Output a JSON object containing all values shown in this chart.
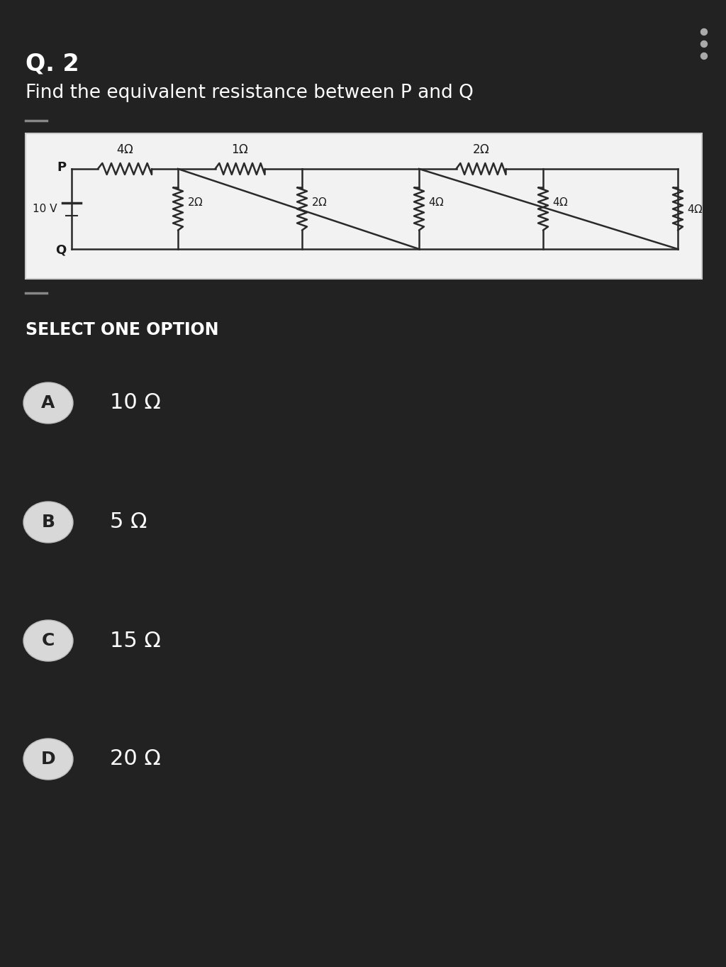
{
  "bg_dark": "#222222",
  "circuit_bg": "#f2f2f2",
  "circuit_border": "#cccccc",
  "text_color": "#ffffff",
  "wire_color": "#2a2a2a",
  "title": "Q. 2",
  "question": "Find the equivalent resistance between P and Q",
  "select_label": "SELECT ONE OPTION",
  "options": [
    "A",
    "B",
    "C",
    "D"
  ],
  "option_texts": [
    "10 Ω",
    "5 Ω",
    "15 Ω",
    "20 Ω"
  ],
  "circuit_label_P": "P",
  "circuit_label_Q": "Q",
  "circuit_voltage": "10 V",
  "three_dots_color": "#aaaaaa",
  "option_circle_color": "#d8d8d8",
  "option_text_circle": "#222222",
  "dash_color": "#888888"
}
